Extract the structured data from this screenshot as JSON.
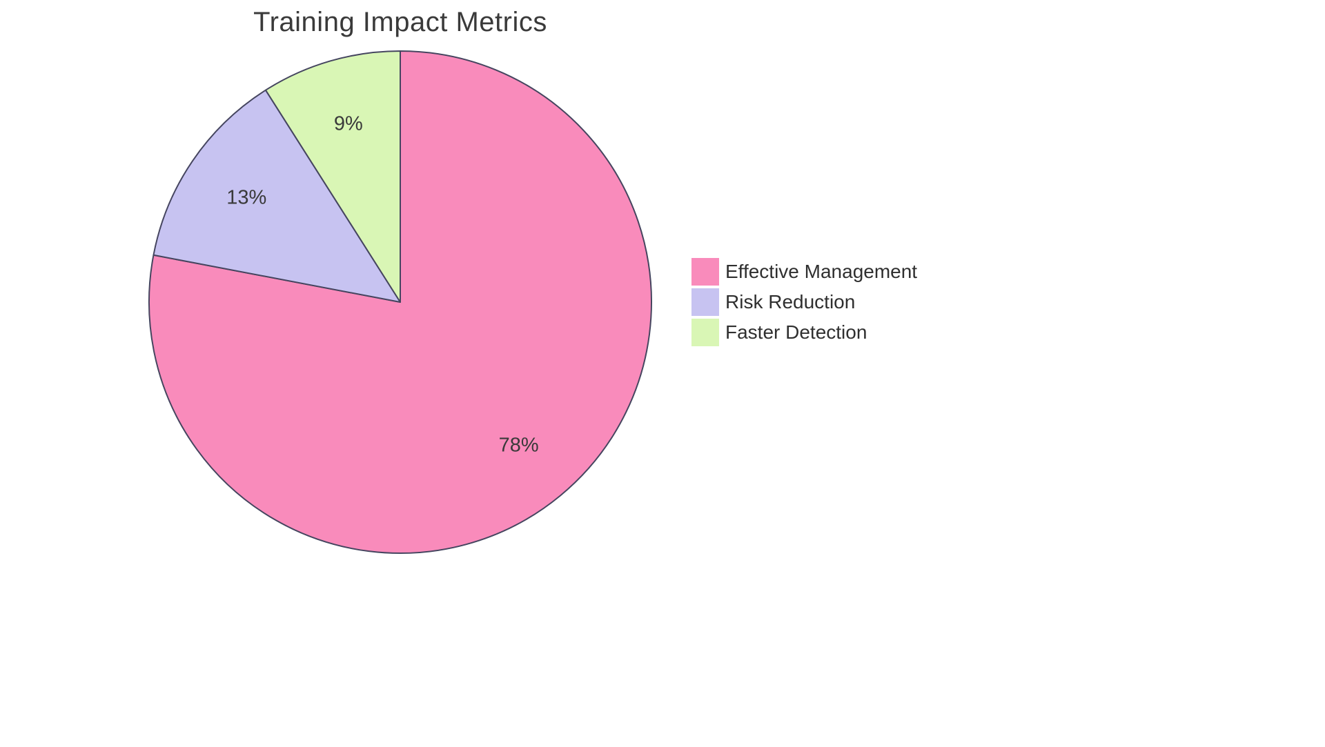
{
  "chart_data": {
    "type": "pie",
    "title": "Training Impact Metrics",
    "labels": [
      "Effective Management",
      "Risk Reduction",
      "Faster Detection"
    ],
    "values": [
      78,
      13,
      9
    ],
    "percent_labels": [
      "78%",
      "13%",
      "9%"
    ],
    "colors": [
      "#F98BBB",
      "#C7C3F1",
      "#D9F6B5"
    ],
    "slice_stroke_color": "#45455F",
    "label_color": "#3A3A3A",
    "background_color": "#FFFFFF",
    "start_angle_deg": 0,
    "direction": "clockwise",
    "legend_position": "right"
  }
}
